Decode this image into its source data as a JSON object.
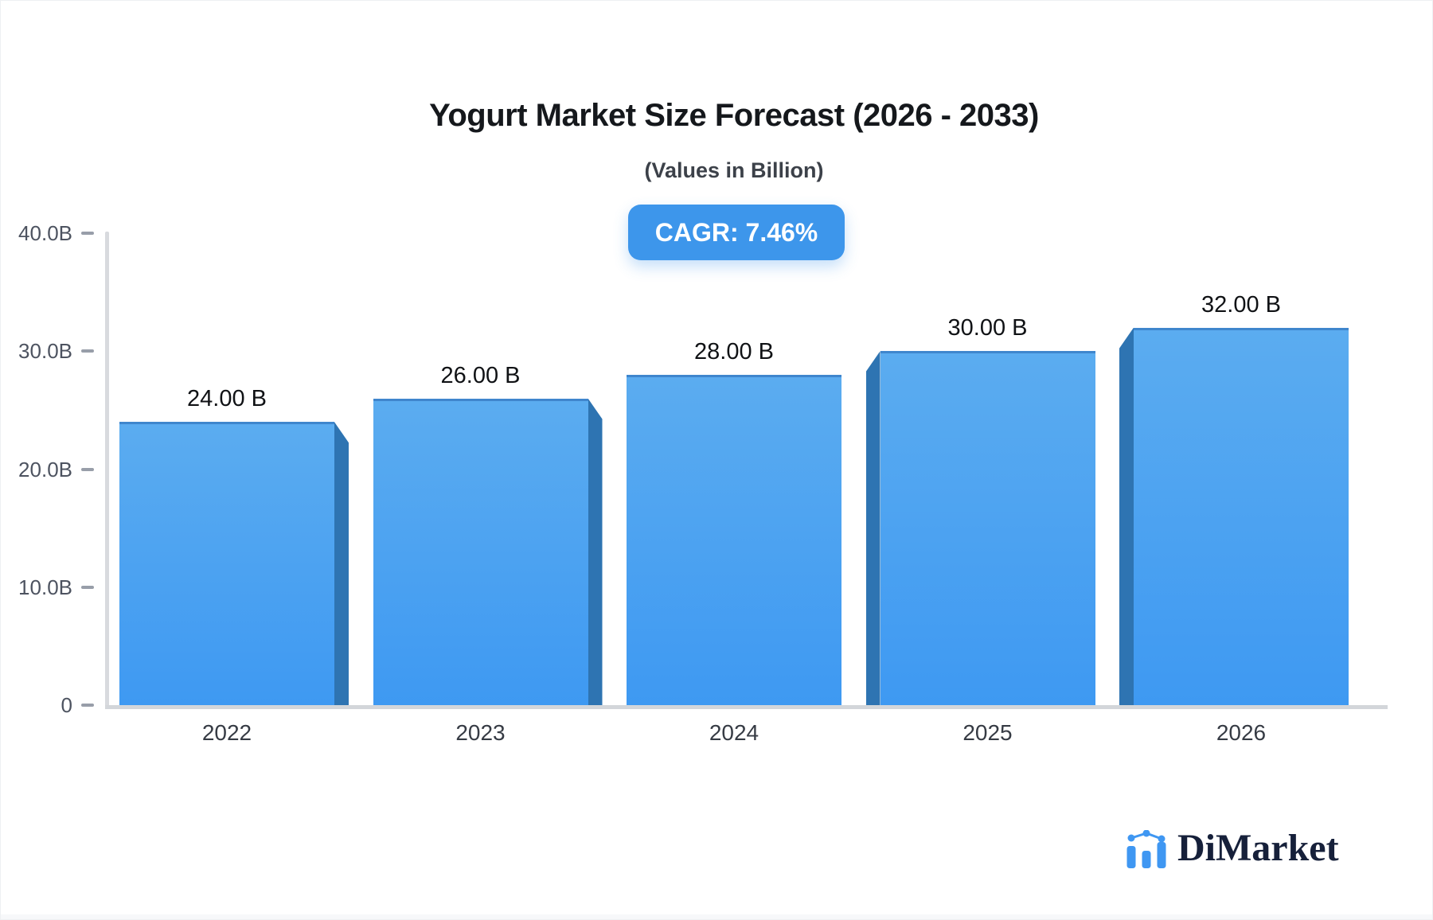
{
  "header": {
    "title": "Yogurt Market Size Forecast (2026 - 2033)",
    "subtitle": "(Values in Billion)",
    "cagr_badge": "CAGR: 7.46%"
  },
  "chart_data": {
    "type": "bar",
    "title": "Yogurt Market Size Forecast (2026 - 2033)",
    "subtitle": "(Values in Billion)",
    "annotation": "CAGR: 7.46%",
    "categories": [
      "2022",
      "2023",
      "2024",
      "2025",
      "2026"
    ],
    "values": [
      24,
      26,
      28,
      30,
      32
    ],
    "value_labels": [
      "24.00 B",
      "26.00 B",
      "28.00 B",
      "30.00 B",
      "32.00 B"
    ],
    "unit": "Billion",
    "ylim": [
      0,
      40
    ],
    "yticks": [
      {
        "value": 40,
        "label": "40.0B"
      },
      {
        "value": 30,
        "label": "30.0B"
      },
      {
        "value": 20,
        "label": "20.0B"
      },
      {
        "value": 10,
        "label": "10.0B"
      },
      {
        "value": 0,
        "label": "0"
      }
    ],
    "grid": false,
    "legend_position": "none",
    "colors": {
      "bar_face_top": "#5bacf0",
      "bar_face_bottom": "#3e99f2",
      "bar_side": "#2e74b2",
      "bar_top_edge": "#3f86cd",
      "badge_bg": "#3d96eb",
      "axis_line": "#d8dade",
      "tick_text": "#4d5360"
    }
  },
  "footer": {
    "brand_name": "DiMarket",
    "logo_icon": "bar-chart-line-icon",
    "brand_blue": "#3f97f2",
    "brand_text_color": "#16203a"
  }
}
